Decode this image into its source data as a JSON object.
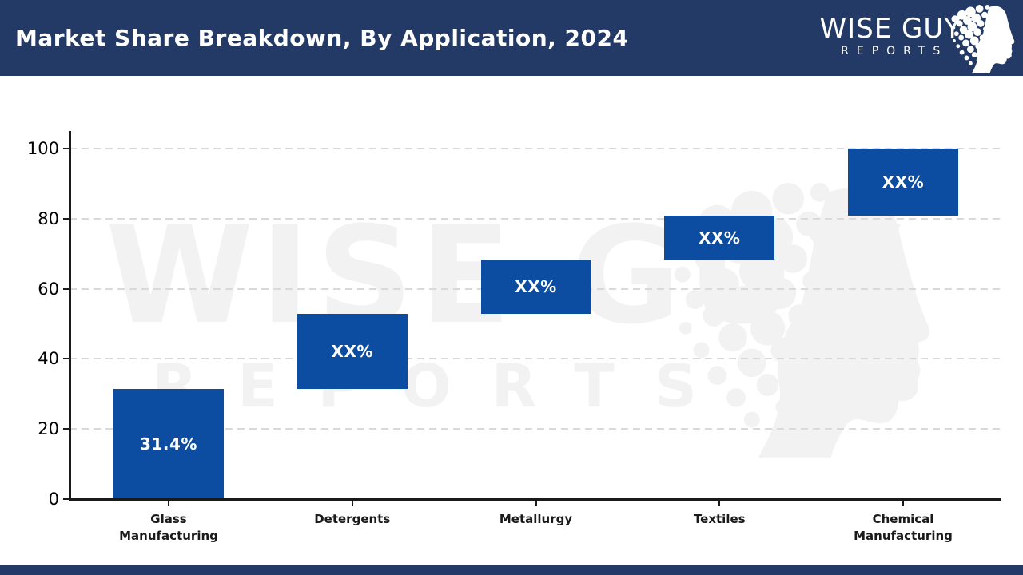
{
  "header": {
    "title": "Market Share Breakdown, By Application, 2024",
    "bg_color": "#233966",
    "logo": {
      "line1": "WISE GUY",
      "line2": "REPORTS"
    }
  },
  "watermark": {
    "line1": "WISE GUY",
    "line2": "REPORTS"
  },
  "chart_data": {
    "type": "bar",
    "subtype": "waterfall",
    "title": "Market Share Breakdown, By Application, 2024",
    "categories": [
      "Glass Manufacturing",
      "Detergents",
      "Metallurgy",
      "Textiles",
      "Chemical Manufacturing"
    ],
    "category_lines": [
      [
        "Glass",
        "Manufacturing"
      ],
      [
        "Detergents"
      ],
      [
        "Metallurgy"
      ],
      [
        "Textiles"
      ],
      [
        "Chemical",
        "Manufacturing"
      ]
    ],
    "segments": [
      {
        "category": "Glass Manufacturing",
        "start": 0,
        "end": 31.4,
        "label": "31.4%"
      },
      {
        "category": "Detergents",
        "start": 31.4,
        "end": 52.8,
        "label": "XX%"
      },
      {
        "category": "Metallurgy",
        "start": 52.8,
        "end": 68.3,
        "label": "XX%"
      },
      {
        "category": "Textiles",
        "start": 68.3,
        "end": 80.8,
        "label": "XX%"
      },
      {
        "category": "Chemical Manufacturing",
        "start": 80.8,
        "end": 100,
        "label": "XX%"
      }
    ],
    "y_ticks": [
      0,
      20,
      40,
      60,
      80,
      100
    ],
    "ylim": [
      0,
      100
    ],
    "xlabel": "",
    "ylabel": "",
    "bar_color": "#0c4da2",
    "gridline_color": "#d9d9d9",
    "grid": "horizontal-dashed",
    "legend_position": "none"
  },
  "footer": {
    "bg_color": "#233966"
  }
}
